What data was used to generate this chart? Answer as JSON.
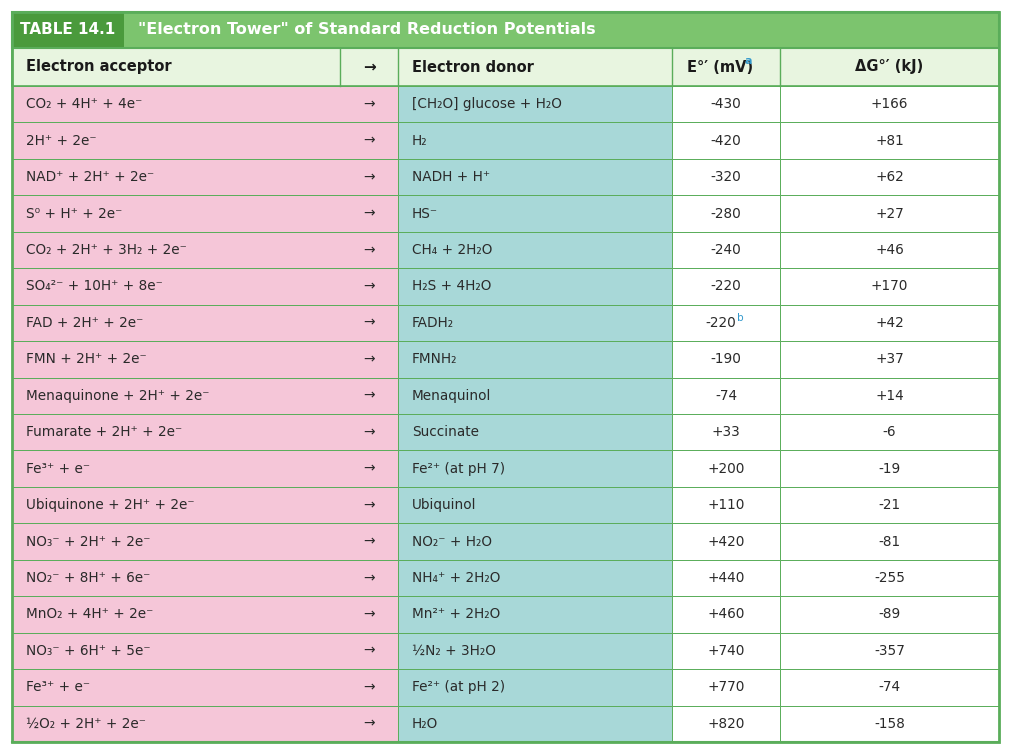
{
  "title_left": "TABLE 14.1",
  "title_right": "\"Electron Tower\" of Standard Reduction Potentials",
  "title_bg": "#7cc46e",
  "title_left_bg": "#4a9a3c",
  "header_bg": "#e8f5e0",
  "acceptor_bg": "#f5c6d8",
  "donor_bg": "#a8d8d8",
  "white_bg": "#ffffff",
  "border_color": "#5aad5a",
  "text_color": "#2a2a2a",
  "header_text_color": "#1a1a1a",
  "rows": [
    {
      "acceptor": "CO₂ + 4H⁺ + 4e⁻",
      "donor": "[CH₂O] glucose + H₂O",
      "eo": "-430",
      "dg": "+166"
    },
    {
      "acceptor": "2H⁺ + 2e⁻",
      "donor": "H₂",
      "eo": "-420",
      "dg": "+81"
    },
    {
      "acceptor": "NAD⁺ + 2H⁺ + 2e⁻",
      "donor": "NADH + H⁺",
      "eo": "-320",
      "dg": "+62"
    },
    {
      "acceptor": "S⁰ + H⁺ + 2e⁻",
      "donor": "HS⁻",
      "eo": "-280",
      "dg": "+27"
    },
    {
      "acceptor": "CO₂ + 2H⁺ + 3H₂ + 2e⁻",
      "donor": "CH₄ + 2H₂O",
      "eo": "-240",
      "dg": "+46"
    },
    {
      "acceptor": "SO₄²⁻ + 10H⁺ + 8e⁻",
      "donor": "H₂S + 4H₂O",
      "eo": "-220",
      "dg": "+170"
    },
    {
      "acceptor": "FAD + 2H⁺ + 2e⁻",
      "donor": "FADH₂",
      "eo": "-220b",
      "dg": "+42"
    },
    {
      "acceptor": "FMN + 2H⁺ + 2e⁻",
      "donor": "FMNH₂",
      "eo": "-190",
      "dg": "+37"
    },
    {
      "acceptor": "Menaquinone + 2H⁺ + 2e⁻",
      "donor": "Menaquinol",
      "eo": "-74",
      "dg": "+14"
    },
    {
      "acceptor": "Fumarate + 2H⁺ + 2e⁻",
      "donor": "Succinate",
      "eo": "+33",
      "dg": "-6"
    },
    {
      "acceptor": "Fe³⁺ + e⁻",
      "donor": "Fe²⁺ (at pH 7)",
      "eo": "+200",
      "dg": "-19"
    },
    {
      "acceptor": "Ubiquinone + 2H⁺ + 2e⁻",
      "donor": "Ubiquinol",
      "eo": "+110",
      "dg": "-21"
    },
    {
      "acceptor": "NO₃⁻ + 2H⁺ + 2e⁻",
      "donor": "NO₂⁻ + H₂O",
      "eo": "+420",
      "dg": "-81"
    },
    {
      "acceptor": "NO₂⁻ + 8H⁺ + 6e⁻",
      "donor": "NH₄⁺ + 2H₂O",
      "eo": "+440",
      "dg": "-255"
    },
    {
      "acceptor": "MnO₂ + 4H⁺ + 2e⁻",
      "donor": "Mn²⁺ + 2H₂O",
      "eo": "+460",
      "dg": "-89"
    },
    {
      "acceptor": "NO₃⁻ + 6H⁺ + 5e⁻",
      "donor": "½N₂ + 3H₂O",
      "eo": "+740",
      "dg": "-357"
    },
    {
      "acceptor": "Fe³⁺ + e⁻",
      "donor": "Fe²⁺ (at pH 2)",
      "eo": "+770",
      "dg": "-74"
    },
    {
      "acceptor": "½O₂ + 2H⁺ + 2e⁻",
      "donor": "H₂O",
      "eo": "+820",
      "dg": "-158"
    }
  ],
  "fig_w": 10.11,
  "fig_h": 7.54,
  "dpi": 100
}
